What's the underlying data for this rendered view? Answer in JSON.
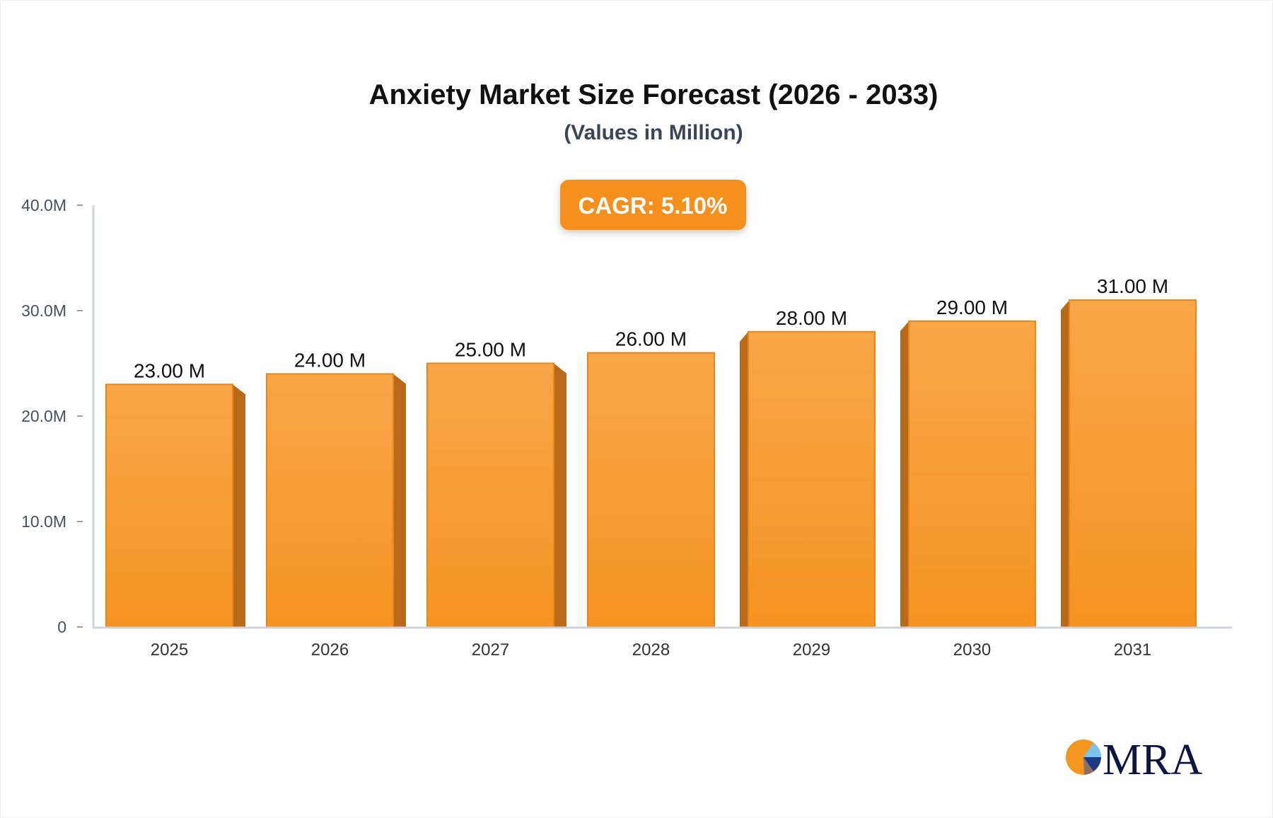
{
  "chart_data": {
    "type": "bar",
    "title": "Anxiety Market Size Forecast (2026 - 2033)",
    "subtitle": "(Values in Million)",
    "categories": [
      "2025",
      "2026",
      "2027",
      "2028",
      "2029",
      "2030",
      "2031"
    ],
    "values": [
      23,
      24,
      25,
      26,
      28,
      29,
      31
    ],
    "data_labels": [
      "23.00 M",
      "24.00 M",
      "25.00 M",
      "26.00 M",
      "28.00 M",
      "29.00 M",
      "31.00 M"
    ],
    "y_ticks": [
      0,
      10,
      20,
      30,
      40
    ],
    "y_tick_labels": [
      "0",
      "10.0M",
      "20.0M",
      "30.0M",
      "40.0M"
    ],
    "ylim": [
      0,
      40
    ],
    "xlabel": "",
    "ylabel": "",
    "grid": false,
    "legend": "none",
    "annotation": "CAGR: 5.10%",
    "colors": {
      "bar": "#f7a23f",
      "bar_side": "#b86a1a",
      "badge": "#f5901f"
    }
  },
  "logo": {
    "text": "MRA"
  }
}
